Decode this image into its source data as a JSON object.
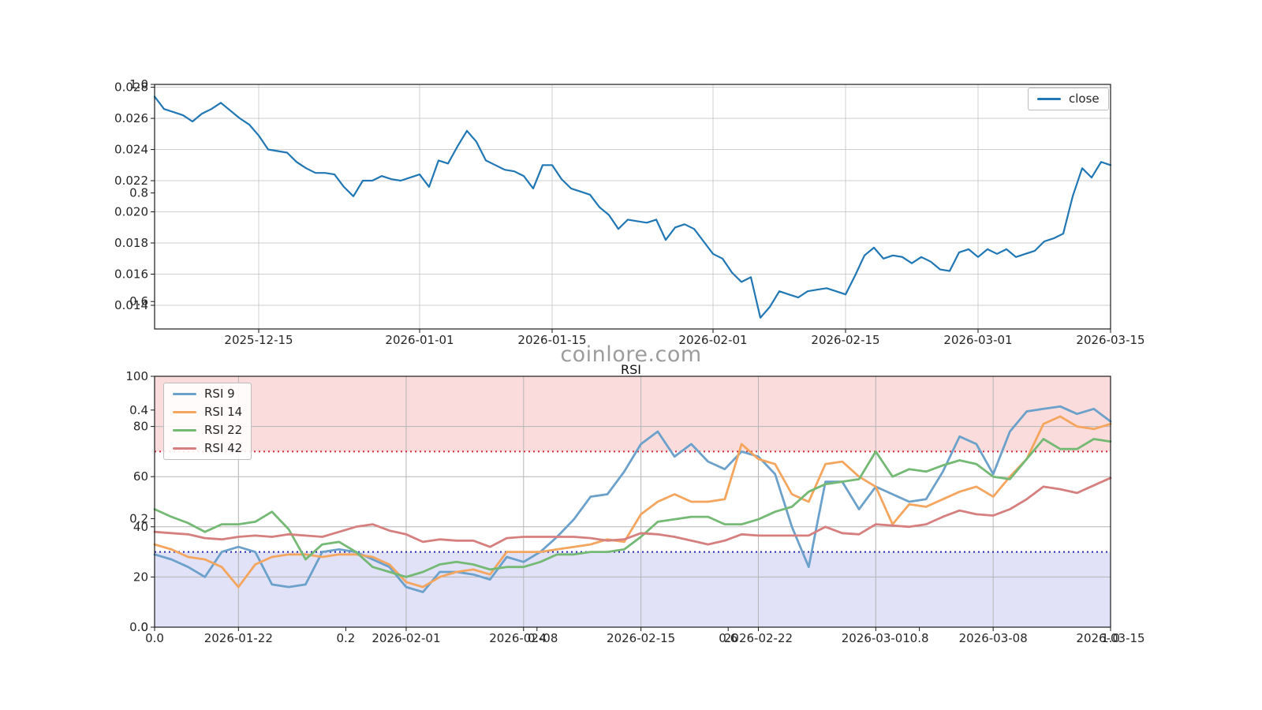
{
  "watermark": "coinlore.com",
  "overlay_axis": {
    "x_labels": [
      "0.0",
      "0.2",
      "0.4",
      "0.6",
      "0.8",
      "1.0"
    ],
    "y_labels": [
      "1.0",
      "0.8",
      "0.6",
      "0.4",
      "0.2",
      "0.0"
    ]
  },
  "chart_data": [
    {
      "type": "line",
      "name": "price",
      "title": "",
      "x_start": "2025-12-04",
      "x_end": "2026-03-15",
      "x_freq": "daily",
      "x_tick_labels": [
        "2025-12-15",
        "2026-01-01",
        "2026-01-15",
        "2026-02-01",
        "2026-02-15",
        "2026-03-01",
        "2026-03-15"
      ],
      "y_tick_labels": [
        "0.028",
        "0.026",
        "0.024",
        "0.022",
        "0.020",
        "0.018",
        "0.016",
        "0.014"
      ],
      "ylim": [
        0.01248,
        0.02818
      ],
      "grid": true,
      "legend_position": "upper right",
      "series": [
        {
          "name": "close",
          "color": "#2077b4",
          "values": [
            0.0274,
            0.0266,
            0.0264,
            0.0262,
            0.0258,
            0.0263,
            0.0266,
            0.027,
            0.0265,
            0.026,
            0.0256,
            0.0249,
            0.024,
            0.0239,
            0.0238,
            0.0232,
            0.0228,
            0.0225,
            0.0225,
            0.0224,
            0.0216,
            0.021,
            0.022,
            0.022,
            0.0223,
            0.0221,
            0.022,
            0.0222,
            0.0224,
            0.0216,
            0.0233,
            0.0231,
            0.0242,
            0.0252,
            0.0245,
            0.0233,
            0.023,
            0.0227,
            0.0226,
            0.0223,
            0.0215,
            0.023,
            0.023,
            0.0221,
            0.0215,
            0.0213,
            0.0211,
            0.0203,
            0.0198,
            0.0189,
            0.0195,
            0.0194,
            0.0193,
            0.0195,
            0.0182,
            0.019,
            0.0192,
            0.0189,
            0.0181,
            0.0173,
            0.017,
            0.0161,
            0.0155,
            0.0158,
            0.0132,
            0.0139,
            0.0149,
            0.0147,
            0.0145,
            0.0149,
            0.015,
            0.0151,
            0.0149,
            0.0147,
            0.0159,
            0.0172,
            0.0177,
            0.017,
            0.0172,
            0.0171,
            0.0167,
            0.0171,
            0.0168,
            0.0163,
            0.0162,
            0.0174,
            0.0176,
            0.0171,
            0.0176,
            0.0173,
            0.0176,
            0.0171,
            0.0173,
            0.0175,
            0.0181,
            0.0183,
            0.0186,
            0.021,
            0.0228,
            0.0222,
            0.0232,
            0.023
          ]
        }
      ]
    },
    {
      "type": "line",
      "name": "rsi",
      "title": "RSI",
      "x_start": "2026-01-17",
      "x_end": "2026-03-15",
      "x_freq": "daily",
      "x_tick_labels": [
        "2026-01-22",
        "2026-02-01",
        "2026-02-08",
        "2026-02-15",
        "2026-02-22",
        "2026-03-01",
        "2026-03-08",
        "2026-03-15"
      ],
      "y_tick_labels": [
        "100",
        "80",
        "60",
        "40",
        "20",
        "0"
      ],
      "ylim": [
        0,
        100
      ],
      "grid": true,
      "legend_position": "upper left",
      "overbought_level": 70,
      "oversold_level": 30,
      "band_colors": {
        "overbought": "#fadcdc",
        "oversold": "#e1e1f7"
      },
      "level_line_colors": {
        "overbought": "#d02a3c",
        "oversold": "#2828ae"
      },
      "series": [
        {
          "name": "RSI 9",
          "color": "#6ba1ca",
          "values": [
            29,
            27,
            24,
            20,
            30,
            32,
            30,
            17,
            16,
            17,
            30,
            31,
            30,
            27,
            24,
            16,
            14,
            22,
            22,
            21,
            19,
            28,
            26,
            30,
            36,
            43,
            52,
            53,
            62,
            73,
            78,
            68,
            73,
            66,
            63,
            70,
            68,
            61,
            40,
            24,
            58,
            58,
            47,
            56,
            53,
            50,
            51,
            62,
            76,
            73,
            61,
            78,
            86,
            87,
            88,
            85,
            87,
            82
          ]
        },
        {
          "name": "RSI 14",
          "color": "#f4a55e",
          "values": [
            33,
            31,
            28,
            27,
            24,
            16,
            25,
            28,
            29,
            29,
            28,
            29,
            29,
            28,
            25,
            18,
            16,
            20,
            22,
            23,
            21,
            30,
            30,
            30,
            31,
            32,
            33,
            35,
            34,
            45,
            50,
            53,
            50,
            50,
            51,
            73,
            67,
            65,
            53,
            50,
            65,
            66,
            60,
            56,
            41,
            49,
            48,
            51,
            54,
            56,
            52,
            60,
            67,
            81,
            84,
            80,
            79,
            81
          ]
        },
        {
          "name": "RSI 22",
          "color": "#74b974",
          "values": [
            47,
            44,
            41.5,
            38,
            41,
            41,
            42,
            46,
            39,
            27,
            33,
            34,
            30,
            24,
            22,
            20,
            22,
            25,
            26,
            25,
            23,
            24,
            24,
            26,
            29,
            29,
            30,
            30,
            31,
            36,
            42,
            43,
            44,
            44,
            41,
            41,
            43,
            46,
            48,
            54,
            57,
            58,
            59,
            70,
            60,
            63,
            62,
            64.5,
            66.5,
            65,
            60,
            59,
            67,
            75,
            71,
            71,
            75,
            74
          ]
        },
        {
          "name": "RSI 42",
          "color": "#d67f7f",
          "values": [
            38,
            37.5,
            37,
            35.5,
            35,
            36,
            36.5,
            36,
            37,
            36.5,
            36,
            38,
            40,
            41,
            38.5,
            37,
            34,
            35,
            34.5,
            34.5,
            32,
            35.5,
            36,
            36,
            36,
            36,
            35.5,
            34.5,
            35,
            37.5,
            37,
            36,
            34.5,
            33,
            34.5,
            37,
            36.5,
            36.5,
            36.5,
            36.5,
            40,
            37.5,
            37,
            41,
            40.5,
            40,
            41,
            44,
            46.5,
            45,
            44.5,
            47,
            51,
            56,
            55,
            53.5,
            56.5,
            59.5
          ]
        }
      ]
    }
  ]
}
